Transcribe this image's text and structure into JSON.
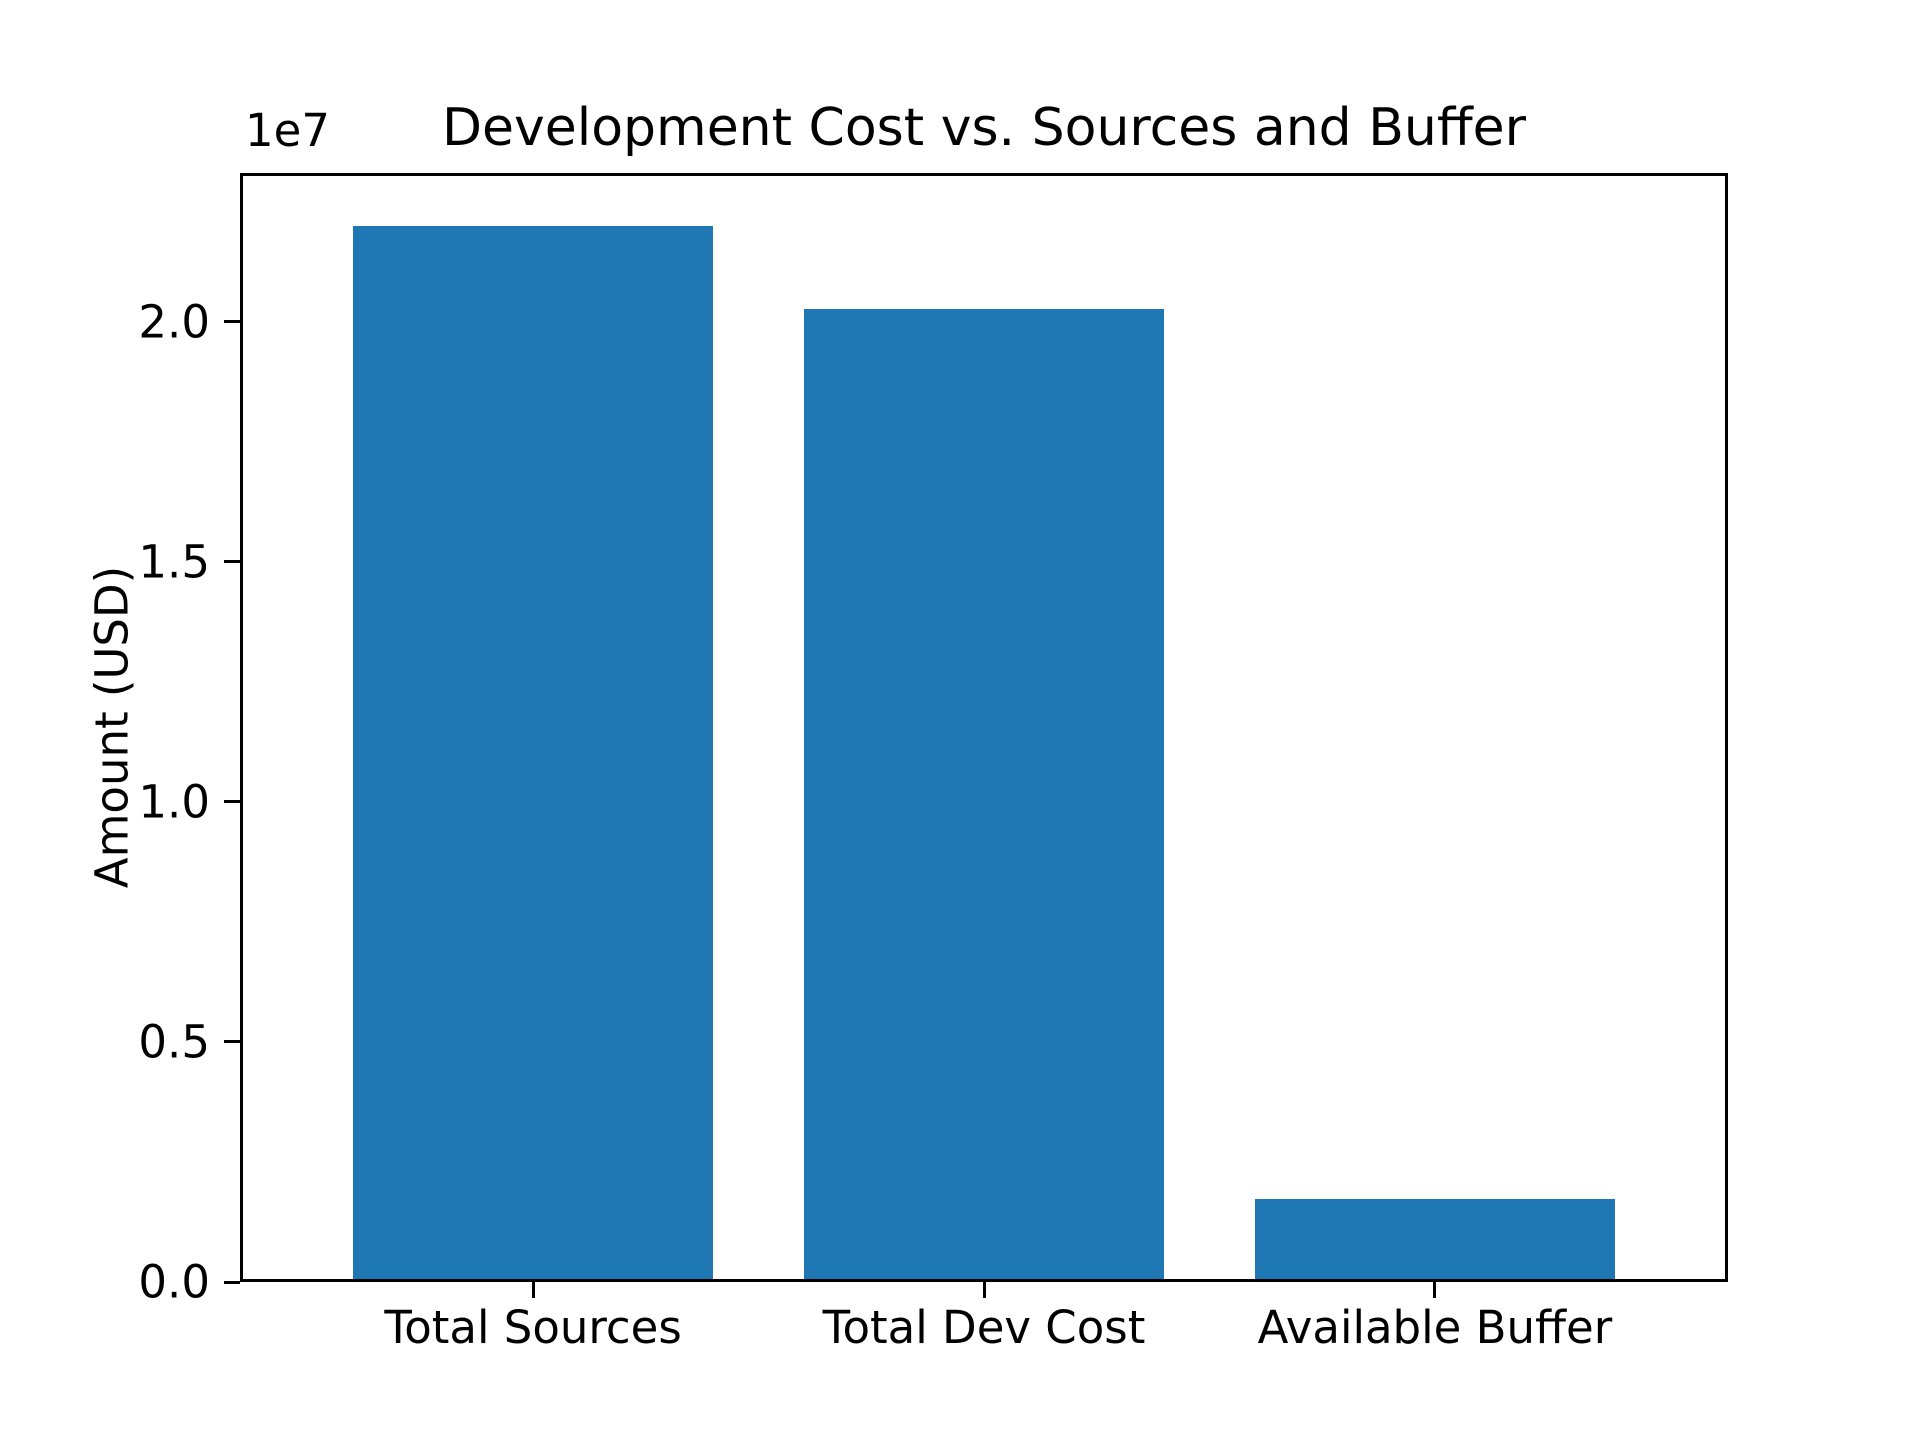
{
  "figure": {
    "background_color": "#ffffff",
    "text_color": "#000000"
  },
  "chart_data": {
    "type": "bar",
    "title": "Development Cost vs. Sources and Buffer",
    "xlabel": "",
    "ylabel": "Amount (USD)",
    "categories": [
      "Total Sources",
      "Total Dev Cost",
      "Available Buffer"
    ],
    "values": [
      22000000,
      20275000,
      1725000
    ],
    "bar_color": "#1f77b4",
    "ylim": [
      0,
      23100000
    ],
    "yticks": {
      "values": [
        0,
        5000000,
        10000000,
        15000000,
        20000000
      ],
      "labels": [
        "0.0",
        "0.5",
        "1.0",
        "1.5",
        "2.0"
      ]
    },
    "offset_text": "1e7",
    "grid": false,
    "legend": null,
    "bar_width_fraction": 0.8
  }
}
